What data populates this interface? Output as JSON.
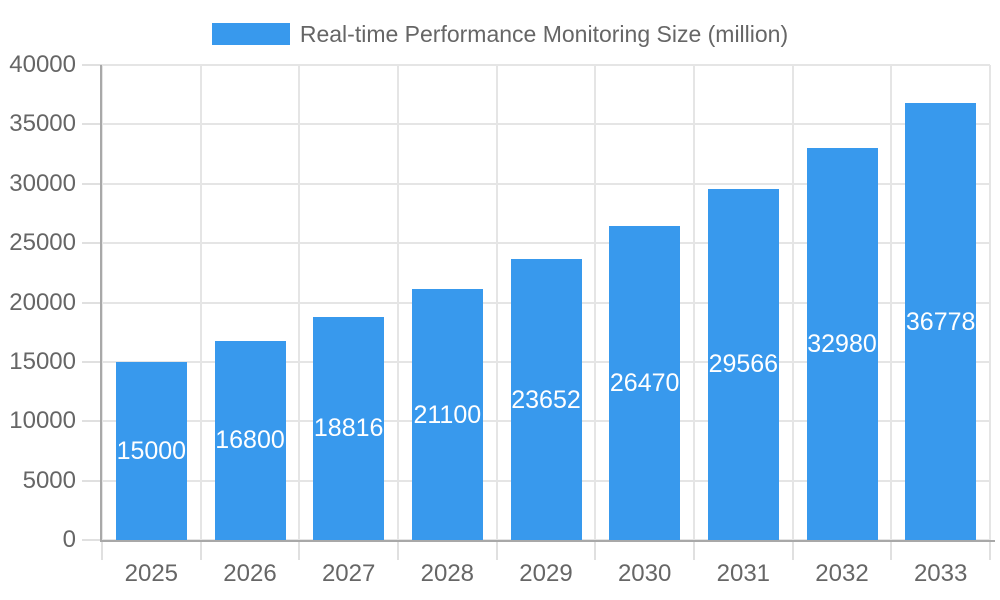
{
  "chart_data": {
    "type": "bar",
    "title": "",
    "legend_label": "Real-time Performance Monitoring Size (million)",
    "legend_position": "top",
    "categories": [
      "2025",
      "2026",
      "2027",
      "2028",
      "2029",
      "2030",
      "2031",
      "2032",
      "2033"
    ],
    "values": [
      15000,
      16800,
      18816,
      21100,
      23652,
      26470,
      29566,
      32980,
      36778
    ],
    "xlabel": "",
    "ylabel": "",
    "ylim": [
      0,
      40000
    ],
    "ytick_step": 5000,
    "ytick_labels": [
      "0",
      "5000",
      "10000",
      "15000",
      "20000",
      "25000",
      "30000",
      "35000",
      "40000"
    ],
    "grid": true,
    "value_labels_inside_bars": true,
    "colors": {
      "bar": "#3899ED",
      "value_label_text": "#ffffff",
      "tick_text": "#666666",
      "legend_text": "#666666",
      "gridline": "#e5e5e5",
      "tick_stub": "#e0e0e0",
      "axis_line": "#a8a8a8",
      "background": "#ffffff"
    }
  }
}
